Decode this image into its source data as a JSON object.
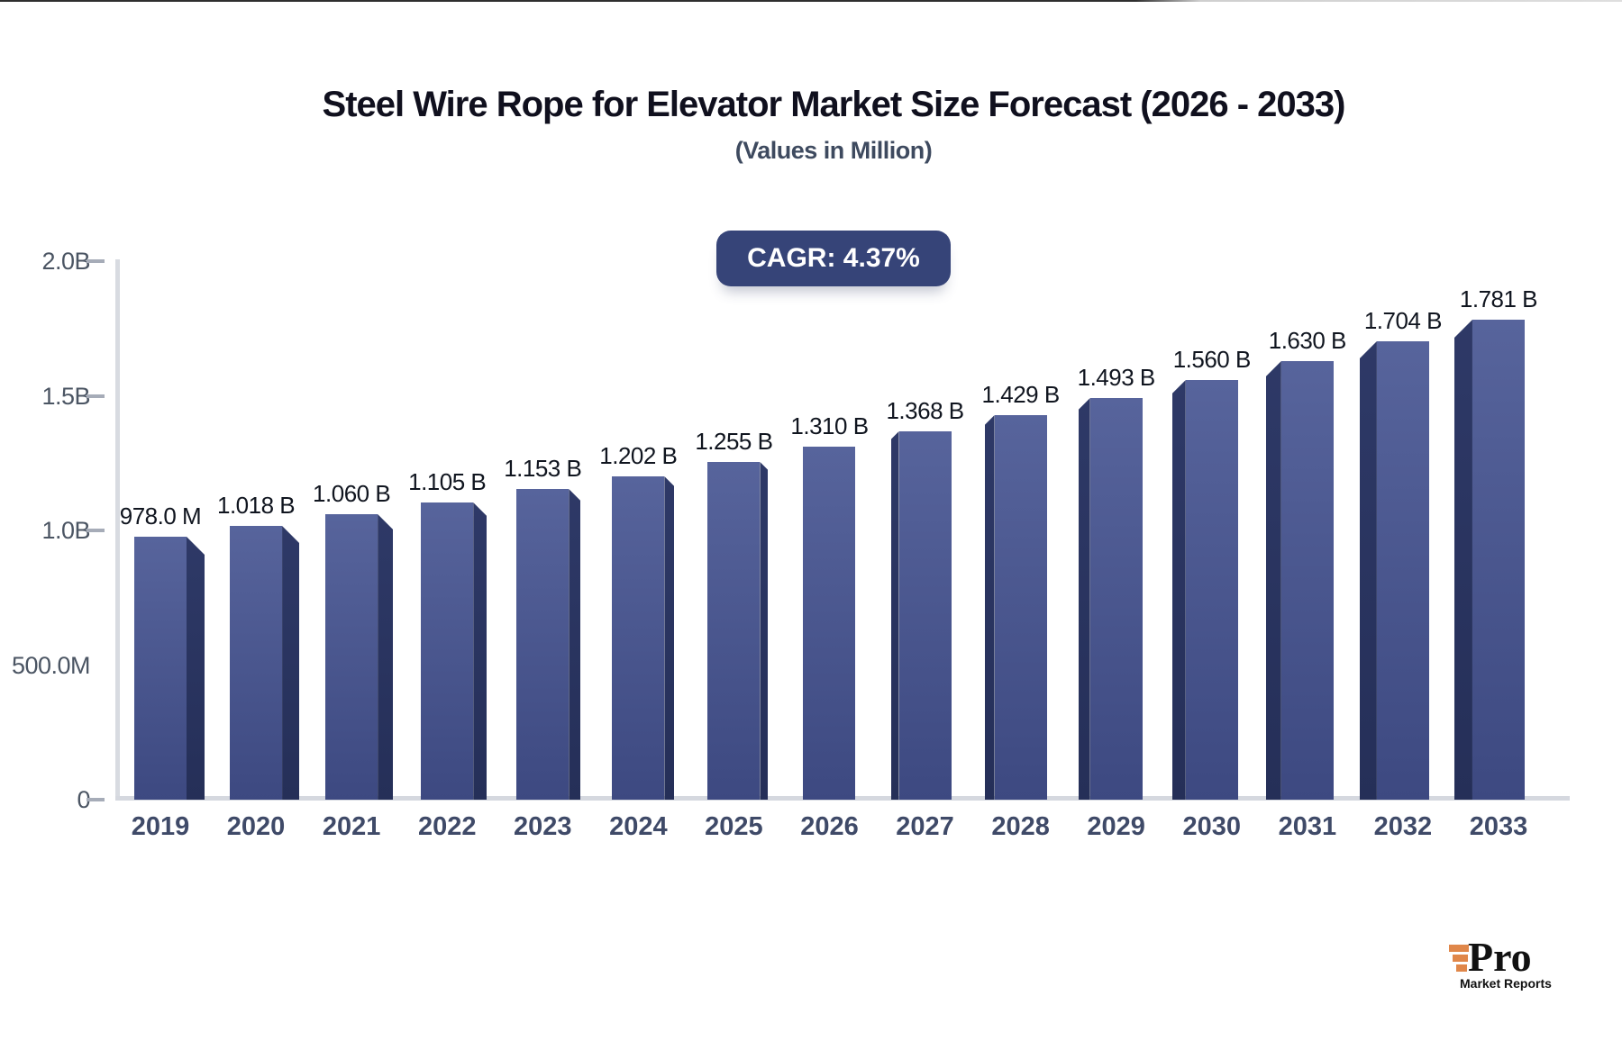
{
  "header": {
    "title": "Steel Wire Rope for Elevator Market Size Forecast (2026 - 2033)",
    "subtitle": "(Values in Million)",
    "cagr_badge": "CAGR: 4.37%"
  },
  "chart_data": {
    "type": "bar",
    "title": "Steel Wire Rope for Elevator Market Size Forecast (2026 - 2033)",
    "subtitle": "(Values in Million)",
    "cagr_percent": 4.37,
    "categories": [
      "2019",
      "2020",
      "2021",
      "2022",
      "2023",
      "2024",
      "2025",
      "2026",
      "2027",
      "2028",
      "2029",
      "2030",
      "2031",
      "2032",
      "2033"
    ],
    "values_billion": [
      0.978,
      1.018,
      1.06,
      1.105,
      1.153,
      1.202,
      1.255,
      1.31,
      1.368,
      1.429,
      1.493,
      1.56,
      1.63,
      1.704,
      1.781
    ],
    "value_labels": [
      "978.0 M",
      "1.018 B",
      "1.060 B",
      "1.105 B",
      "1.153 B",
      "1.202 B",
      "1.255 B",
      "1.310 B",
      "1.368 B",
      "1.429 B",
      "1.493 B",
      "1.560 B",
      "1.630 B",
      "1.704 B",
      "1.781 B"
    ],
    "xlabel": "",
    "ylabel": "",
    "ylim": [
      0,
      2.0
    ],
    "grid": false,
    "legend": "none",
    "y_ticks": [
      {
        "label": "2.0B",
        "value": 2.0,
        "dash": true
      },
      {
        "label": "1.5B",
        "value": 1.5,
        "dash": true
      },
      {
        "label": "1.0B",
        "value": 1.0,
        "dash": true
      },
      {
        "label": "500.0M",
        "value": 0.5,
        "dash": false
      },
      {
        "label": "0",
        "value": 0.0,
        "dash": true
      }
    ]
  },
  "colors": {
    "bar_front_top": "#57649c",
    "bar_front_bottom": "#3d4981",
    "bar_side_top": "#2e3967",
    "bar_side_bottom": "#252f58",
    "badge_background": "#364478",
    "logo_orange": "#e0874a"
  },
  "logo": {
    "name": "Pro",
    "subtext": "Market Reports"
  }
}
